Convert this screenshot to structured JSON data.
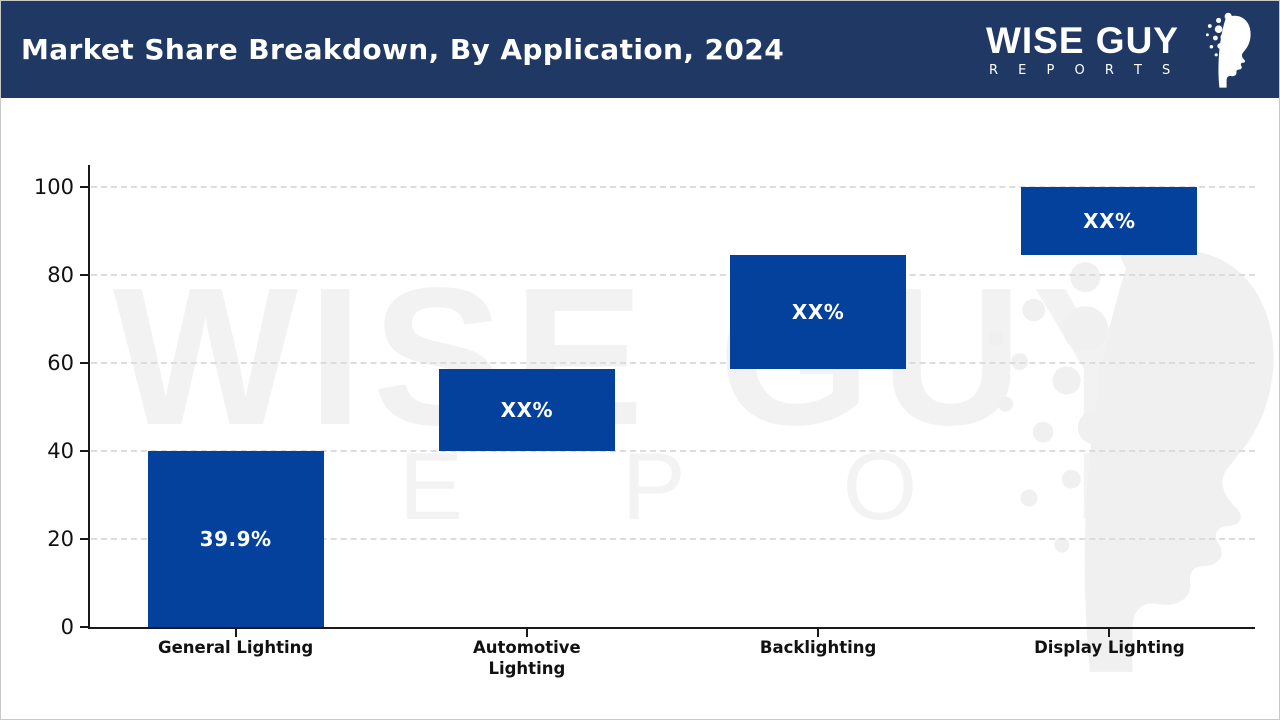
{
  "header": {
    "title": "Market Share Breakdown, By Application, 2024",
    "logo": {
      "line1": "WISE GUY",
      "line2": "R E P O R T S"
    }
  },
  "watermark": {
    "line1": "WISE GUY",
    "line2": "R E P O R T S"
  },
  "colors": {
    "header_bg": "#1f3864",
    "bar": "#04419c",
    "grid": "#dcdcdc",
    "axis": "#1a1a1a",
    "bar_label": "#ffffff",
    "watermark": "#f2f2f2",
    "page_border": "#c9c9c9"
  },
  "chart_data": {
    "type": "bar",
    "subtype": "waterfall",
    "title": "Market Share Breakdown, By Application, 2024",
    "xlabel": "",
    "ylabel": "",
    "ylim": [
      0,
      100
    ],
    "yticks": [
      0,
      20,
      40,
      60,
      80,
      100
    ],
    "grid": "horizontal-dashed",
    "legend": "none",
    "categories": [
      "General Lighting",
      "Automotive Lighting",
      "Backlighting",
      "Display Lighting"
    ],
    "categories_display": [
      "General Lighting",
      "Automotive\nLighting",
      "Backlighting",
      "Display Lighting"
    ],
    "bars": [
      {
        "category": "General Lighting",
        "start": 0,
        "end": 39.9,
        "label": "39.9%"
      },
      {
        "category": "Automotive Lighting",
        "start": 39.9,
        "end": 58.6,
        "label": "XX%"
      },
      {
        "category": "Backlighting",
        "start": 58.6,
        "end": 84.6,
        "label": "XX%"
      },
      {
        "category": "Display Lighting",
        "start": 84.6,
        "end": 100,
        "label": "XX%"
      }
    ]
  }
}
